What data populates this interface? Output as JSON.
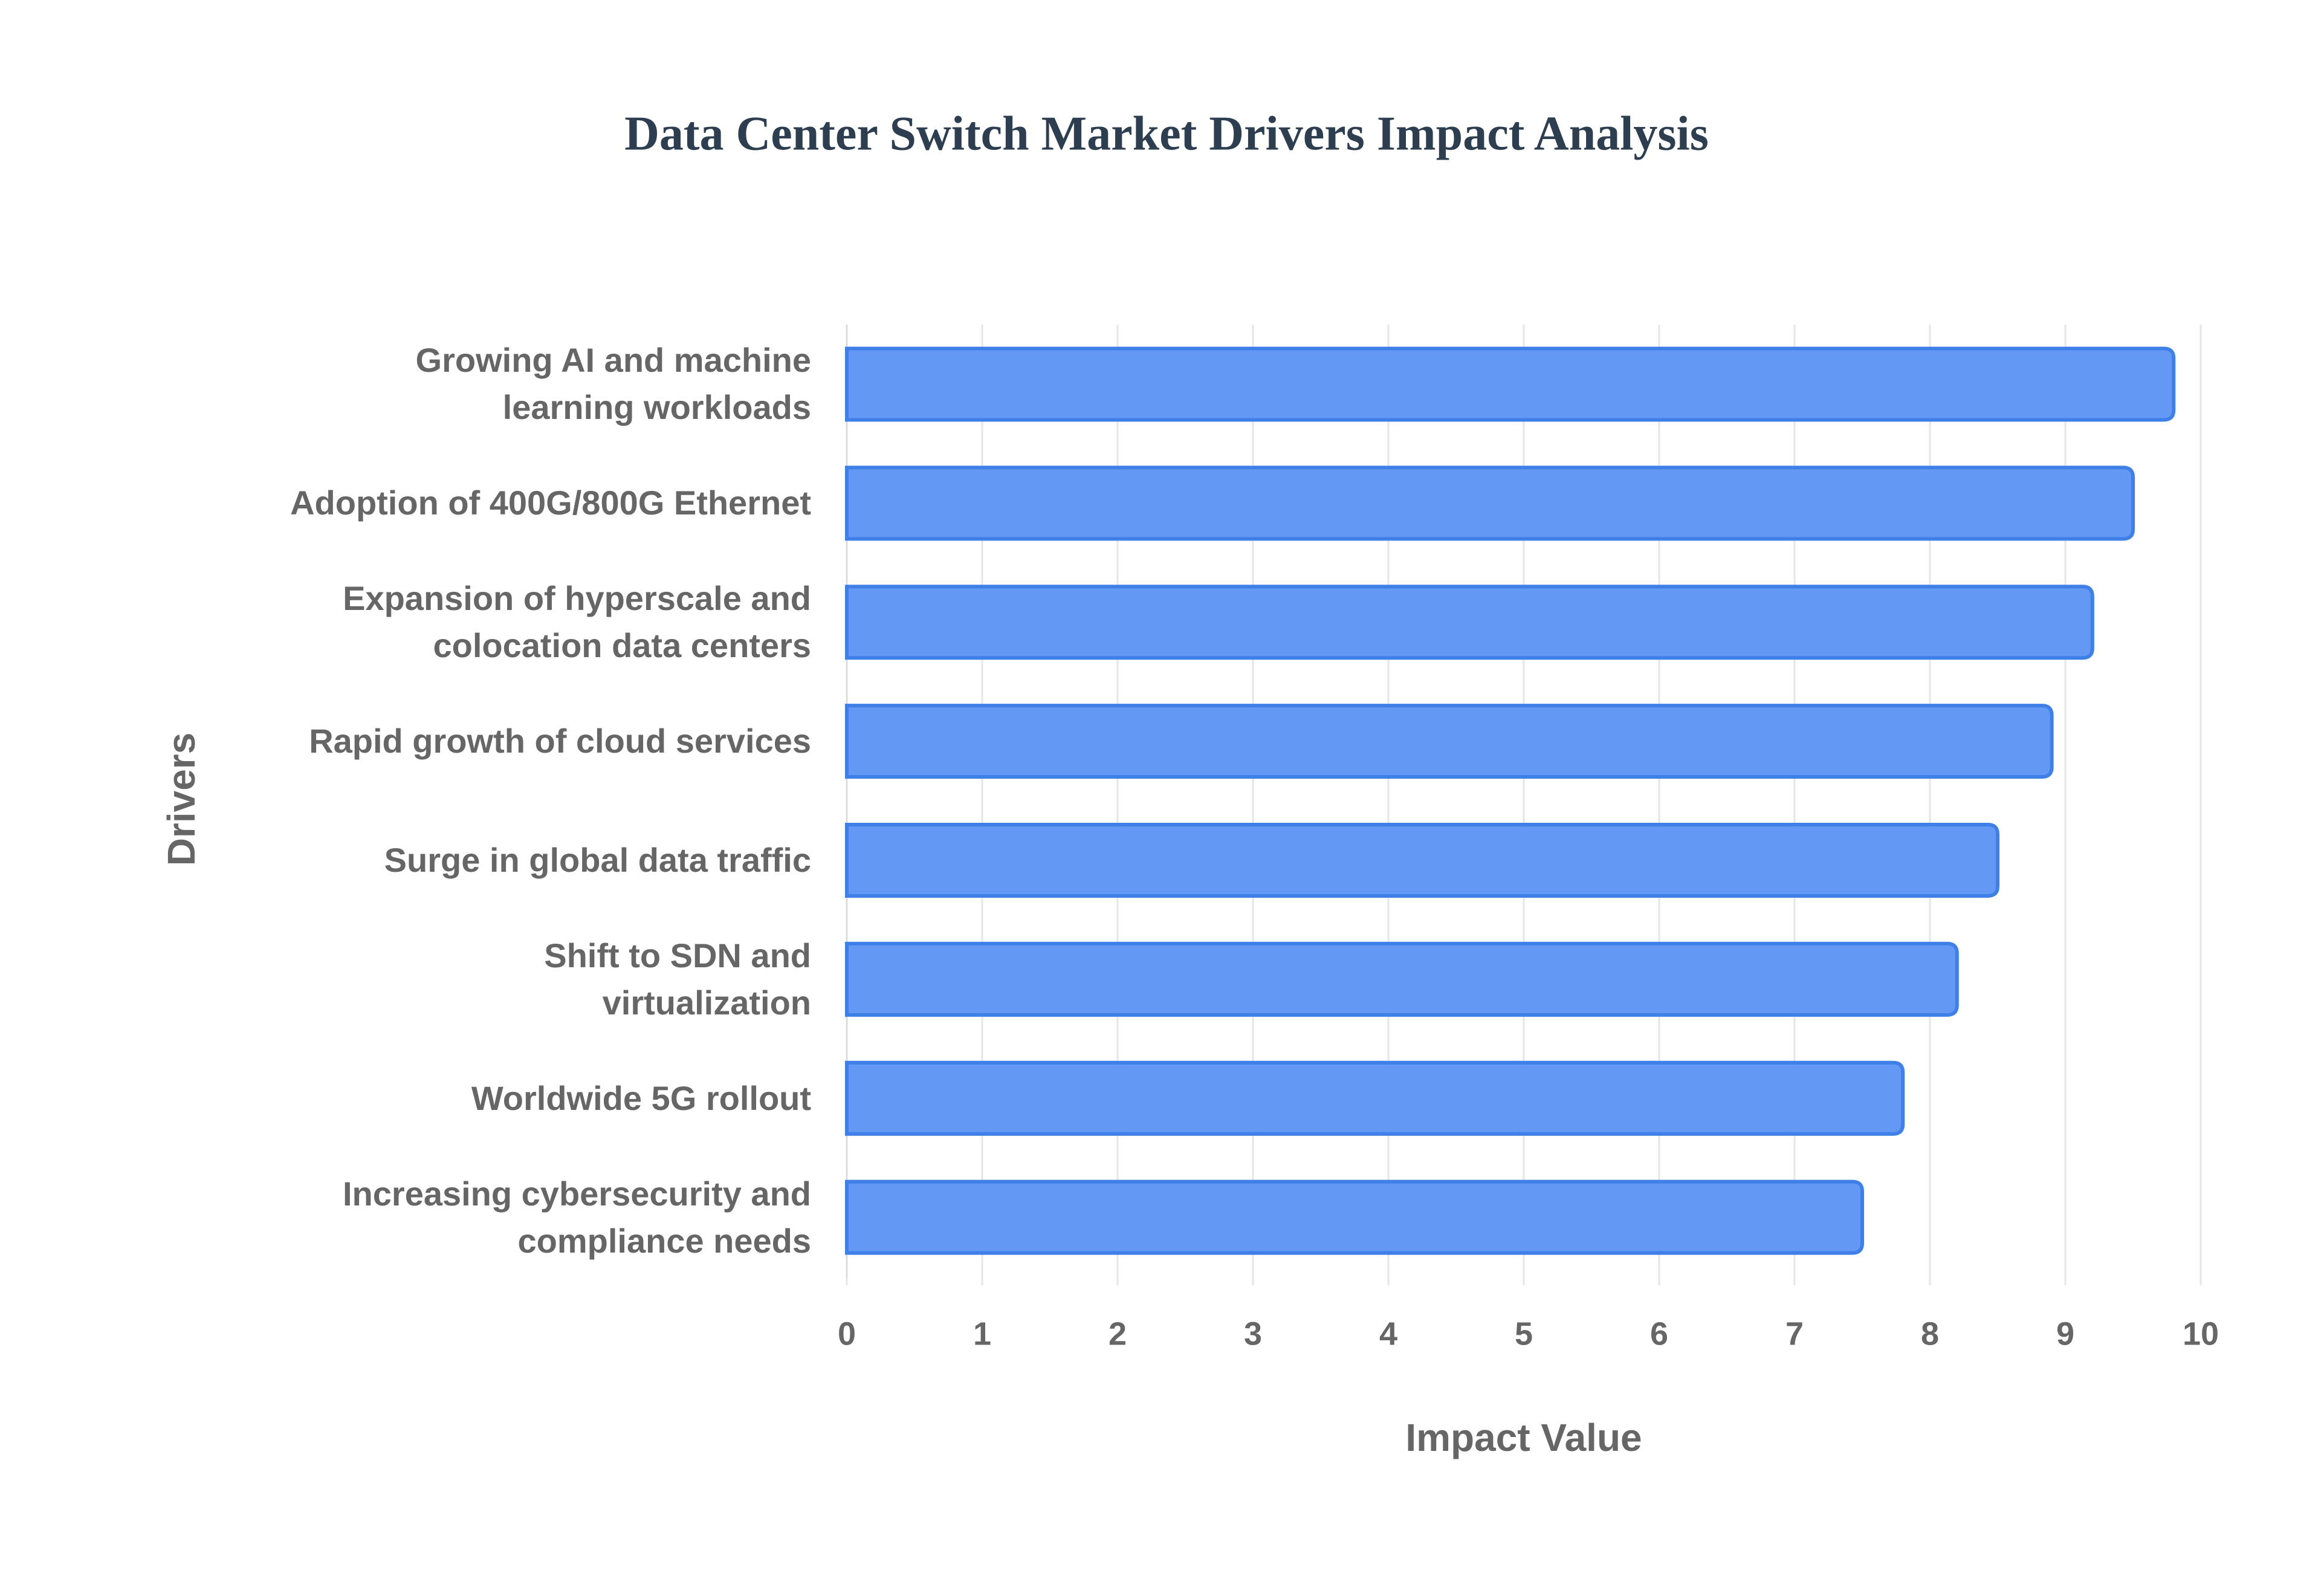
{
  "chart_data": {
    "type": "barh",
    "title": "Data Center Switch Market Drivers Impact Analysis",
    "xlabel": "Impact Value",
    "ylabel": "Drivers",
    "categories": [
      "Growing AI and machine\nlearning workloads",
      "Adoption of 400G/800G Ethernet",
      "Expansion of hyperscale and\ncolocation data centers",
      "Rapid growth of cloud services",
      "Surge in global data traffic",
      "Shift to SDN and\nvirtualization",
      "Worldwide 5G rollout",
      "Increasing cybersecurity and\ncompliance needs"
    ],
    "values": [
      9.8,
      9.5,
      9.2,
      8.9,
      8.5,
      8.2,
      7.8,
      7.5
    ],
    "color": "#6399f5",
    "edge_color": "#3f7fe8",
    "xlim": [
      0,
      10
    ],
    "xticks": [
      0,
      1,
      2,
      3,
      4,
      5,
      6,
      7,
      8,
      9,
      10
    ],
    "grid": true
  }
}
